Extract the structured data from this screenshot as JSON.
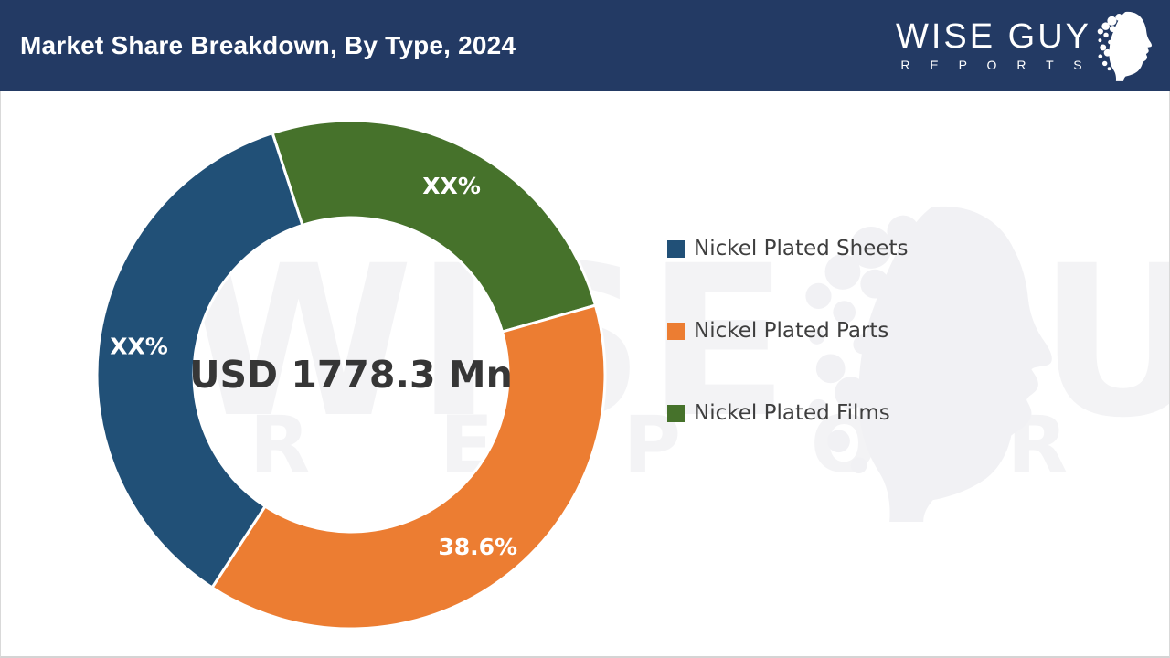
{
  "header": {
    "title": "Market Share Breakdown, By Type, 2024",
    "logo": {
      "wordmark": "WISE GUY",
      "subtext": "R E P O R T S"
    }
  },
  "watermark": {
    "line1": "WISE GUY",
    "line2": "R E P O R T S"
  },
  "chart_data": {
    "type": "pie",
    "subtype": "donut",
    "title": "Market Share Breakdown, By Type, 2024",
    "center_label": "USD 1778.3 Mn",
    "start_angle_deg": -18,
    "direction": "clockwise",
    "inner_radius_ratio": 0.62,
    "slices": [
      {
        "name": "Nickel Plated Films",
        "data_label": "XX%",
        "value_pct": 25.6,
        "color": "#46722b"
      },
      {
        "name": "Nickel Plated Parts",
        "data_label": "38.6%",
        "value_pct": 38.6,
        "color": "#ec7d32"
      },
      {
        "name": "Nickel Plated Sheets",
        "data_label": "XX%",
        "value_pct": 35.8,
        "color": "#215077"
      }
    ]
  },
  "legend": {
    "items": [
      {
        "label": "Nickel Plated Sheets",
        "color": "#215077"
      },
      {
        "label": "Nickel Plated Parts",
        "color": "#ec7d32"
      },
      {
        "label": "Nickel Plated Films",
        "color": "#46722b"
      }
    ]
  },
  "colors": {
    "header_bg": "#233a64",
    "slice_label_text": "#ffffff",
    "center_text": "#363636",
    "legend_text": "#3e3e3e",
    "watermark": "#f3f3f5"
  }
}
